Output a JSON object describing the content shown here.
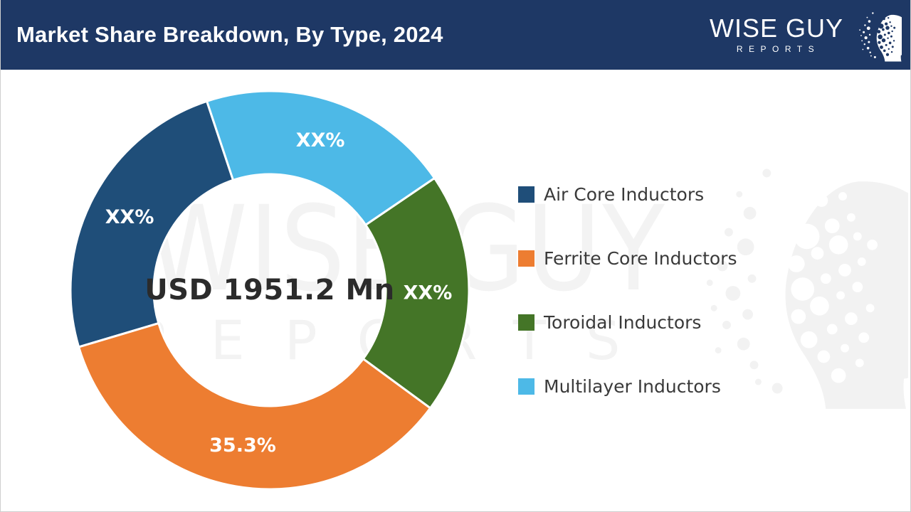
{
  "header": {
    "title": "Market Share Breakdown, By Type, 2024",
    "bg_color": "#1e3865",
    "logo": {
      "line1": "WISE GUY",
      "line2": "REPORTS"
    }
  },
  "watermark": {
    "line1": "WISE GUY",
    "line2": "REPORTS",
    "color": "#f3f3f3"
  },
  "chart_data": {
    "type": "pie",
    "donut": true,
    "title": "Market Share Breakdown, By Type, 2024",
    "center_label": "USD 1951.2 Mn",
    "categories": [
      "Air Core Inductors",
      "Ferrite Core Inductors",
      "Toroidal Inductors",
      "Multilayer Inductors"
    ],
    "series": [
      {
        "name": "Air Core Inductors",
        "value": 24.5,
        "label": "XX%",
        "color": "#1f4e79"
      },
      {
        "name": "Ferrite Core Inductors",
        "value": 35.3,
        "label": "35.3%",
        "color": "#ed7d31"
      },
      {
        "name": "Toroidal Inductors",
        "value": 19.6,
        "label": "XX%",
        "color": "#447527"
      },
      {
        "name": "Multilayer Inductors",
        "value": 20.6,
        "label": "XX%",
        "color": "#4db9e7"
      }
    ],
    "start_angle_deg": 341.6,
    "direction": "counterclockwise",
    "legend_position": "right",
    "label_color": "#ffffff",
    "center_label_color": "#2b2b2b"
  }
}
